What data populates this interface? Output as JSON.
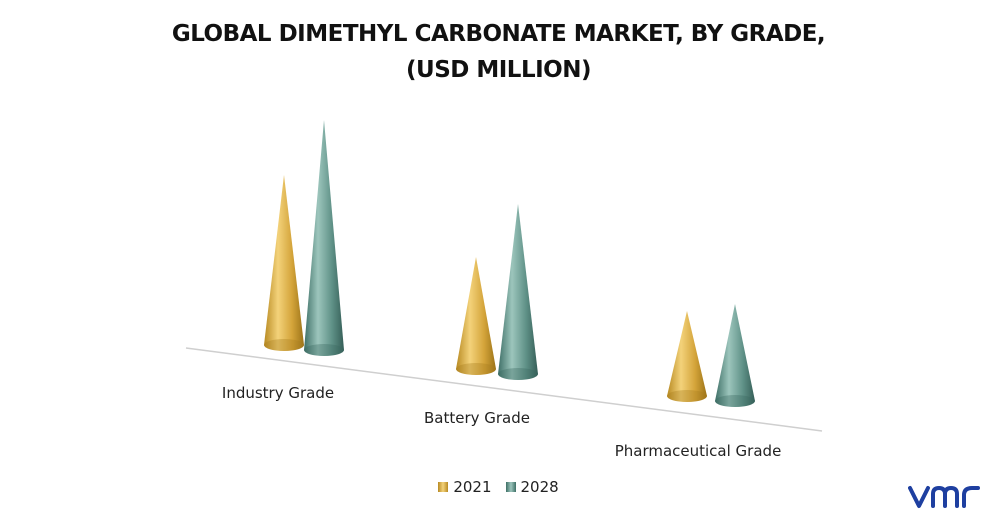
{
  "header": {
    "title_line1": "GLOBAL DIMETHYL CARBONATE MARKET, BY GRADE,",
    "title_line2": "(USD MILLION)"
  },
  "chart_data": {
    "type": "bar",
    "categories": [
      "Industry Grade",
      "Battery Grade",
      "Pharmaceutical Grade"
    ],
    "series": [
      {
        "name": "2021",
        "values": [
          170,
          112,
          85
        ],
        "color": "#D9A93A"
      },
      {
        "name": "2028",
        "values": [
          230,
          170,
          97
        ],
        "color": "#5F9187"
      }
    ],
    "shape": "cone",
    "legend": "bottom-center",
    "grid": false
  },
  "logo": {
    "name": "vmr-logo",
    "text": "vmr",
    "color": "#1E3FA0"
  }
}
